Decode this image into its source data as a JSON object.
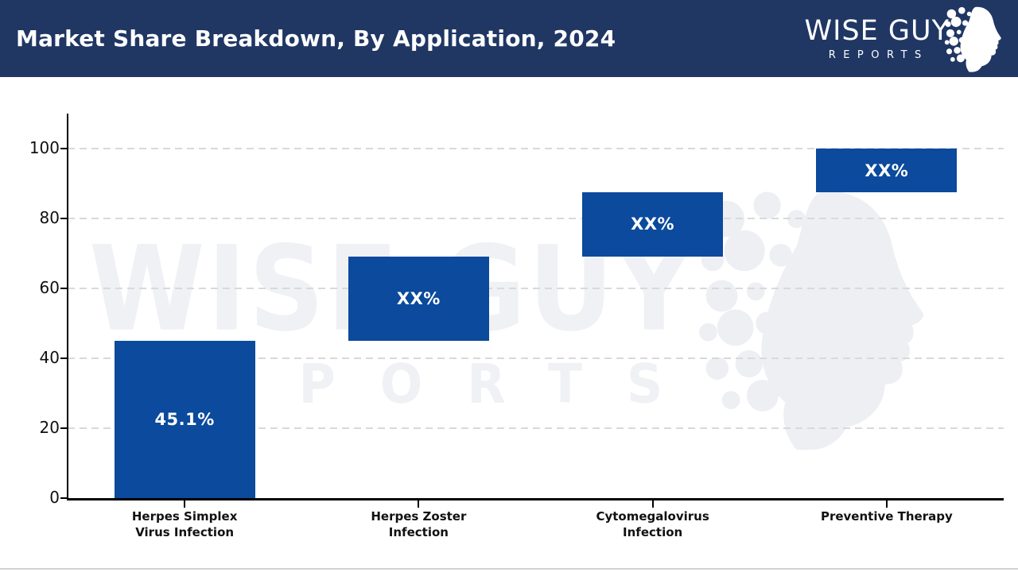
{
  "header": {
    "title": "Market Share Breakdown, By Application, 2024",
    "logo": {
      "wordmark": "WISE GUY",
      "subtext": "REPORTS"
    }
  },
  "watermark": {
    "line1": "WISE GUY",
    "line2": "REPORTS"
  },
  "colors": {
    "header_bg": "#203764",
    "bar": "#0b4a9c",
    "bar_label": "#ffffff",
    "grid": "#d9d9d9",
    "axis": "#000000",
    "watermark": "#eff1f5"
  },
  "chart_data": {
    "type": "bar",
    "subtype": "waterfall (floating cumulative bars)",
    "title": "Market Share Breakdown, By Application, 2024",
    "categories": [
      "Herpes Simplex\nVirus Infection",
      "Herpes Zoster\nInfection",
      "Cytomegalovirus\nInfection",
      "Preventive Therapy"
    ],
    "bars": [
      {
        "category": "Herpes Simplex Virus Infection",
        "label": "45.1%",
        "start": 0,
        "end": 45.1
      },
      {
        "category": "Herpes Zoster Infection",
        "label": "XX%",
        "start": 45.1,
        "end": 69.2
      },
      {
        "category": "Cytomegalovirus Infection",
        "label": "XX%",
        "start": 69.2,
        "end": 87.4
      },
      {
        "category": "Preventive Therapy",
        "label": "XX%",
        "start": 87.4,
        "end": 100
      }
    ],
    "xlabel": "",
    "ylabel": "",
    "yticks": [
      0,
      20,
      40,
      60,
      80,
      100
    ],
    "ylim": [
      0,
      110
    ],
    "grid": "horizontal dashed",
    "legend": "none"
  }
}
